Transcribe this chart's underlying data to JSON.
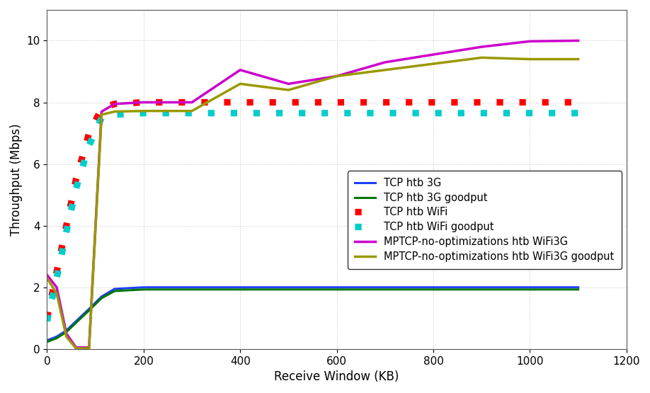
{
  "xlabel": "Receive Window (KB)",
  "ylabel": "Throughput (Mbps)",
  "xlim": [
    0,
    1200
  ],
  "ylim": [
    0,
    11
  ],
  "yticks": [
    0,
    2,
    4,
    6,
    8,
    10
  ],
  "xticks": [
    0,
    200,
    400,
    600,
    800,
    1000,
    1200
  ],
  "series": [
    {
      "label": "TCP htb 3G",
      "color": "#1f3fff",
      "linestyle": "-",
      "linewidth": 2.2,
      "x": [
        0,
        20,
        40,
        60,
        87,
        113,
        140,
        200,
        300,
        400,
        500,
        600,
        700,
        800,
        900,
        1000,
        1100
      ],
      "y": [
        0.28,
        0.4,
        0.6,
        0.9,
        1.3,
        1.7,
        1.95,
        2.0,
        2.0,
        2.0,
        2.0,
        2.0,
        2.0,
        2.0,
        2.0,
        2.0,
        2.0
      ]
    },
    {
      "label": "TCP htb 3G goodput",
      "color": "#007700",
      "linestyle": "-",
      "linewidth": 2.2,
      "x": [
        0,
        20,
        40,
        60,
        87,
        113,
        140,
        200,
        300,
        400,
        500,
        600,
        700,
        800,
        900,
        1000,
        1100
      ],
      "y": [
        0.23,
        0.35,
        0.55,
        0.85,
        1.25,
        1.65,
        1.88,
        1.93,
        1.93,
        1.93,
        1.93,
        1.93,
        1.93,
        1.93,
        1.93,
        1.93,
        1.93
      ]
    },
    {
      "label": "TCP htb WiFi",
      "color": "#ff0000",
      "linestyle": "dotted",
      "linewidth": 3.0,
      "x": [
        0,
        20,
        40,
        60,
        87,
        113,
        140,
        200,
        300,
        400,
        500,
        600,
        700,
        800,
        900,
        1000,
        1100
      ],
      "y": [
        1.0,
        2.5,
        4.0,
        5.5,
        7.0,
        7.8,
        7.95,
        8.0,
        8.0,
        8.0,
        8.0,
        8.0,
        8.0,
        8.0,
        8.0,
        8.0,
        8.0
      ]
    },
    {
      "label": "TCP htb WiFi goodput",
      "color": "#00cccc",
      "linestyle": "dotted",
      "linewidth": 3.0,
      "x": [
        0,
        20,
        40,
        60,
        87,
        113,
        140,
        200,
        300,
        400,
        500,
        600,
        700,
        800,
        900,
        1000,
        1100
      ],
      "y": [
        0.9,
        2.3,
        3.8,
        5.2,
        6.6,
        7.5,
        7.6,
        7.65,
        7.65,
        7.65,
        7.65,
        7.65,
        7.65,
        7.65,
        7.65,
        7.65,
        7.65
      ]
    },
    {
      "label": "MPTCP-no-optimizations htb WiFi3G",
      "color": "#cc00cc",
      "linestyle": "-",
      "linewidth": 2.5,
      "x": [
        0,
        20,
        40,
        60,
        87,
        113,
        140,
        200,
        300,
        400,
        500,
        600,
        700,
        800,
        900,
        1000,
        1100
      ],
      "y": [
        2.4,
        2.0,
        0.5,
        0.05,
        0.05,
        7.7,
        7.95,
        8.0,
        8.0,
        9.05,
        8.6,
        8.85,
        9.3,
        9.55,
        9.8,
        9.98,
        10.0
      ]
    },
    {
      "label": "MPTCP-no-optimizations htb WiFi3G goodput",
      "color": "#999900",
      "linestyle": "-",
      "linewidth": 2.5,
      "x": [
        0,
        20,
        40,
        60,
        87,
        113,
        140,
        200,
        300,
        400,
        500,
        600,
        700,
        800,
        900,
        1000,
        1100
      ],
      "y": [
        2.3,
        1.8,
        0.4,
        0.02,
        0.02,
        7.6,
        7.7,
        7.72,
        7.72,
        8.6,
        8.4,
        8.85,
        9.05,
        9.25,
        9.45,
        9.4,
        9.4
      ]
    }
  ],
  "background_color": "#ffffff",
  "grid_color": "#aaaaaa",
  "legend_fontsize": 10.5
}
